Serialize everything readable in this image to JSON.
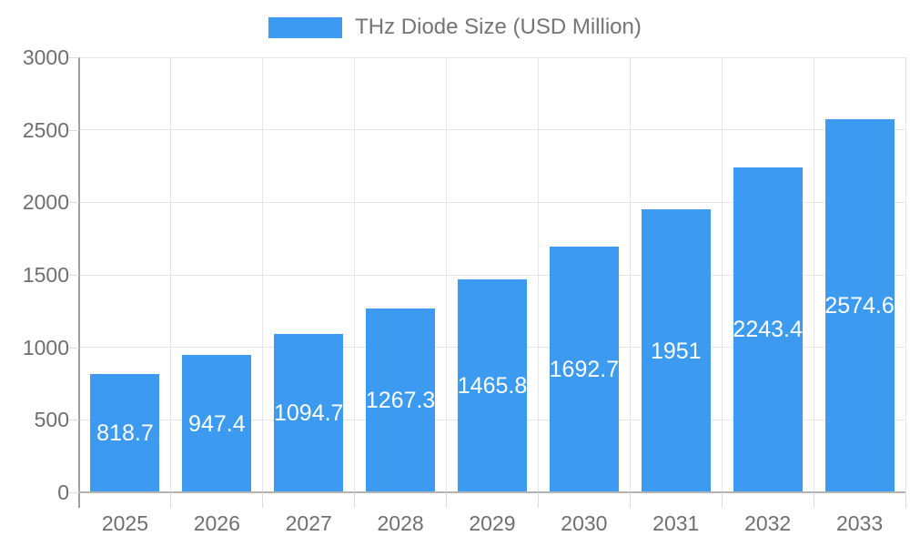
{
  "legend": {
    "label": "THz Diode Size (USD Million)"
  },
  "chart_data": {
    "type": "bar",
    "title": "",
    "categories": [
      "2025",
      "2026",
      "2027",
      "2028",
      "2029",
      "2030",
      "2031",
      "2032",
      "2033"
    ],
    "series": [
      {
        "name": "THz Diode Size (USD Million)",
        "values": [
          818.7,
          947.4,
          1094.7,
          1267.3,
          1465.8,
          1692.7,
          1951,
          2243.4,
          2574.6
        ],
        "value_labels": [
          "818.7",
          "947.4",
          "1094.7",
          "1267.3",
          "1465.8",
          "1692.7",
          "1951",
          "2243.4",
          "2574.6"
        ]
      }
    ],
    "xlabel": "",
    "ylabel": "",
    "ylim": [
      0,
      3000
    ],
    "yticks": [
      0,
      500,
      1000,
      1500,
      2000,
      2500,
      3000
    ],
    "grid": true,
    "legend_position": "top",
    "value_label_position": "inside-center"
  },
  "colors": {
    "bar": "#3C9BF0",
    "grid": "#e6e6e6",
    "axis": "#9e9e9e",
    "axis_light": "#b3b3b3",
    "tick": "#dcdcdc",
    "tick_text": "#6f6f6f",
    "legend_text": "#757575",
    "value_text": "#ffffff",
    "background": "#ffffff"
  }
}
